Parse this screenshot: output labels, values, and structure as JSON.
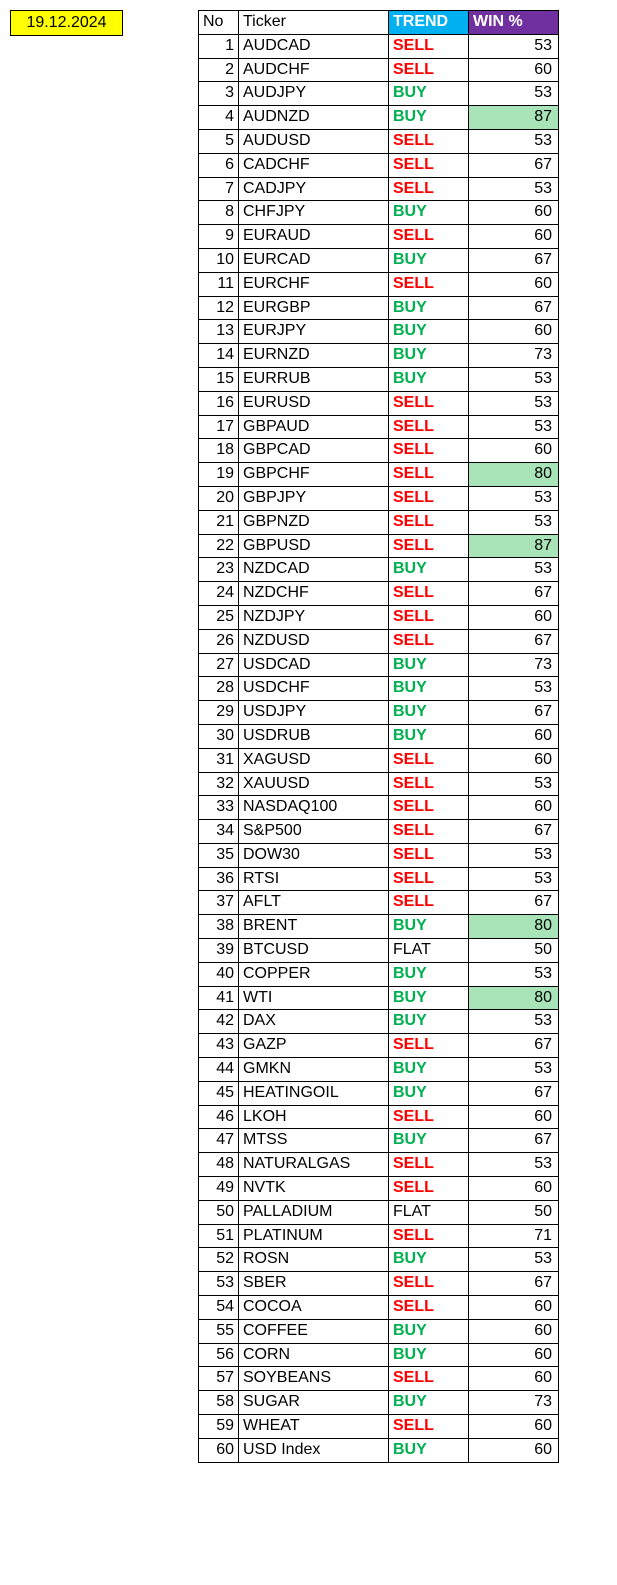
{
  "date": "19.12.2024",
  "headers": {
    "no": "No",
    "ticker": "Ticker",
    "trend": "TREND",
    "win": "WIN %"
  },
  "high_win_threshold": 80,
  "trend_colors": {
    "BUY": "#00b050",
    "SELL": "#ff0000",
    "FLAT": "#000000"
  },
  "header_colors": {
    "trend_bg": "#00b0f0",
    "win_bg": "#7030a0",
    "header_fg": "#ffffff"
  },
  "highlight_bg": "#a9e4b8",
  "date_bg": "#ffff00",
  "rows": [
    {
      "no": 1,
      "ticker": "AUDCAD",
      "trend": "SELL",
      "win": 53
    },
    {
      "no": 2,
      "ticker": "AUDCHF",
      "trend": "SELL",
      "win": 60
    },
    {
      "no": 3,
      "ticker": "AUDJPY",
      "trend": "BUY",
      "win": 53
    },
    {
      "no": 4,
      "ticker": "AUDNZD",
      "trend": "BUY",
      "win": 87
    },
    {
      "no": 5,
      "ticker": "AUDUSD",
      "trend": "SELL",
      "win": 53
    },
    {
      "no": 6,
      "ticker": "CADCHF",
      "trend": "SELL",
      "win": 67
    },
    {
      "no": 7,
      "ticker": "CADJPY",
      "trend": "SELL",
      "win": 53
    },
    {
      "no": 8,
      "ticker": "CHFJPY",
      "trend": "BUY",
      "win": 60
    },
    {
      "no": 9,
      "ticker": "EURAUD",
      "trend": "SELL",
      "win": 60
    },
    {
      "no": 10,
      "ticker": "EURCAD",
      "trend": "BUY",
      "win": 67
    },
    {
      "no": 11,
      "ticker": "EURCHF",
      "trend": "SELL",
      "win": 60
    },
    {
      "no": 12,
      "ticker": "EURGBP",
      "trend": "BUY",
      "win": 67
    },
    {
      "no": 13,
      "ticker": "EURJPY",
      "trend": "BUY",
      "win": 60
    },
    {
      "no": 14,
      "ticker": "EURNZD",
      "trend": "BUY",
      "win": 73
    },
    {
      "no": 15,
      "ticker": "EURRUB",
      "trend": "BUY",
      "win": 53
    },
    {
      "no": 16,
      "ticker": "EURUSD",
      "trend": "SELL",
      "win": 53
    },
    {
      "no": 17,
      "ticker": "GBPAUD",
      "trend": "SELL",
      "win": 53
    },
    {
      "no": 18,
      "ticker": "GBPCAD",
      "trend": "SELL",
      "win": 60
    },
    {
      "no": 19,
      "ticker": "GBPCHF",
      "trend": "SELL",
      "win": 80
    },
    {
      "no": 20,
      "ticker": "GBPJPY",
      "trend": "SELL",
      "win": 53
    },
    {
      "no": 21,
      "ticker": "GBPNZD",
      "trend": "SELL",
      "win": 53
    },
    {
      "no": 22,
      "ticker": "GBPUSD",
      "trend": "SELL",
      "win": 87
    },
    {
      "no": 23,
      "ticker": "NZDCAD",
      "trend": "BUY",
      "win": 53
    },
    {
      "no": 24,
      "ticker": "NZDCHF",
      "trend": "SELL",
      "win": 67
    },
    {
      "no": 25,
      "ticker": "NZDJPY",
      "trend": "SELL",
      "win": 60
    },
    {
      "no": 26,
      "ticker": "NZDUSD",
      "trend": "SELL",
      "win": 67
    },
    {
      "no": 27,
      "ticker": "USDCAD",
      "trend": "BUY",
      "win": 73
    },
    {
      "no": 28,
      "ticker": "USDCHF",
      "trend": "BUY",
      "win": 53
    },
    {
      "no": 29,
      "ticker": "USDJPY",
      "trend": "BUY",
      "win": 67
    },
    {
      "no": 30,
      "ticker": "USDRUB",
      "trend": "BUY",
      "win": 60
    },
    {
      "no": 31,
      "ticker": "XAGUSD",
      "trend": "SELL",
      "win": 60
    },
    {
      "no": 32,
      "ticker": "XAUUSD",
      "trend": "SELL",
      "win": 53
    },
    {
      "no": 33,
      "ticker": "NASDAQ100",
      "trend": "SELL",
      "win": 60
    },
    {
      "no": 34,
      "ticker": "S&P500",
      "trend": "SELL",
      "win": 67
    },
    {
      "no": 35,
      "ticker": "DOW30",
      "trend": "SELL",
      "win": 53
    },
    {
      "no": 36,
      "ticker": "RTSI",
      "trend": "SELL",
      "win": 53
    },
    {
      "no": 37,
      "ticker": "AFLT",
      "trend": "SELL",
      "win": 67
    },
    {
      "no": 38,
      "ticker": "BRENT",
      "trend": "BUY",
      "win": 80
    },
    {
      "no": 39,
      "ticker": "BTCUSD",
      "trend": "FLAT",
      "win": 50
    },
    {
      "no": 40,
      "ticker": "COPPER",
      "trend": "BUY",
      "win": 53
    },
    {
      "no": 41,
      "ticker": "WTI",
      "trend": "BUY",
      "win": 80
    },
    {
      "no": 42,
      "ticker": "DAX",
      "trend": "BUY",
      "win": 53
    },
    {
      "no": 43,
      "ticker": "GAZP",
      "trend": "SELL",
      "win": 67
    },
    {
      "no": 44,
      "ticker": "GMKN",
      "trend": "BUY",
      "win": 53
    },
    {
      "no": 45,
      "ticker": "HEATINGOIL",
      "trend": "BUY",
      "win": 67
    },
    {
      "no": 46,
      "ticker": "LKOH",
      "trend": "SELL",
      "win": 60
    },
    {
      "no": 47,
      "ticker": "MTSS",
      "trend": "BUY",
      "win": 67
    },
    {
      "no": 48,
      "ticker": "NATURALGAS",
      "trend": "SELL",
      "win": 53
    },
    {
      "no": 49,
      "ticker": "NVTK",
      "trend": "SELL",
      "win": 60
    },
    {
      "no": 50,
      "ticker": "PALLADIUM",
      "trend": "FLAT",
      "win": 50
    },
    {
      "no": 51,
      "ticker": "PLATINUM",
      "trend": "SELL",
      "win": 71
    },
    {
      "no": 52,
      "ticker": "ROSN",
      "trend": "BUY",
      "win": 53
    },
    {
      "no": 53,
      "ticker": "SBER",
      "trend": "SELL",
      "win": 67
    },
    {
      "no": 54,
      "ticker": "COCOA",
      "trend": "SELL",
      "win": 60
    },
    {
      "no": 55,
      "ticker": "COFFEE",
      "trend": "BUY",
      "win": 60
    },
    {
      "no": 56,
      "ticker": "CORN",
      "trend": "BUY",
      "win": 60
    },
    {
      "no": 57,
      "ticker": "SOYBEANS",
      "trend": "SELL",
      "win": 60
    },
    {
      "no": 58,
      "ticker": "SUGAR",
      "trend": "BUY",
      "win": 73
    },
    {
      "no": 59,
      "ticker": "WHEAT",
      "trend": "SELL",
      "win": 60
    },
    {
      "no": 60,
      "ticker": "USD Index",
      "trend": "BUY",
      "win": 60
    }
  ]
}
